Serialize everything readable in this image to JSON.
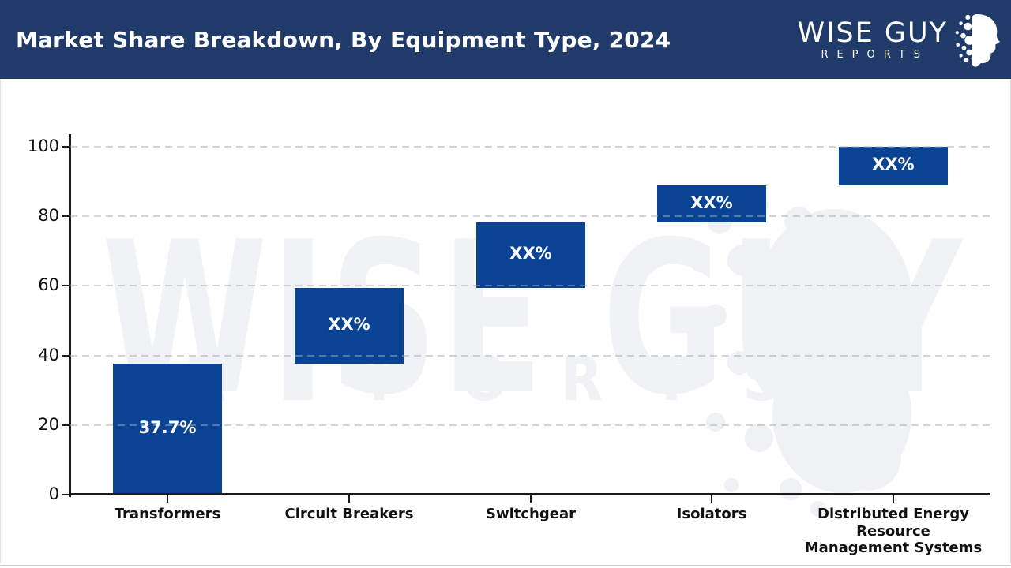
{
  "header": {
    "title": "Market Share Breakdown, By Equipment Type, 2024",
    "logo": {
      "line1": "WISE GUY",
      "line2": "REPORTS"
    },
    "bg_color": "#203a69"
  },
  "watermark": {
    "line1": "WISE GUY",
    "line2": "REPORTS"
  },
  "chart_data": {
    "type": "bar",
    "subtype": "waterfall",
    "title": "Market Share Breakdown, By Equipment Type, 2024",
    "categories": [
      "Transformers",
      "Circuit Breakers",
      "Switchgear",
      "Isolators",
      "Distributed Energy Resource Management Systems"
    ],
    "category_display": [
      "Transformers",
      "Circuit Breakers",
      "Switchgear",
      "Isolators",
      "Distributed Energy\nResource\nManagement Systems"
    ],
    "series": [
      {
        "name": "Market Share (%)",
        "segments": [
          {
            "start": 0,
            "end": 37.7,
            "label": "37.7%"
          },
          {
            "start": 37.7,
            "end": 59.5,
            "label": "XX%"
          },
          {
            "start": 59.5,
            "end": 78.2,
            "label": "XX%"
          },
          {
            "start": 78.2,
            "end": 88.9,
            "label": "XX%"
          },
          {
            "start": 88.9,
            "end": 100,
            "label": "XX%"
          }
        ]
      }
    ],
    "yticks": [
      0,
      20,
      40,
      60,
      80,
      100
    ],
    "ylim": [
      0,
      103.6
    ],
    "xlabel": "",
    "ylabel": "",
    "grid": "horizontal-dashed",
    "legend": "none",
    "bar_color": "#0a4394",
    "label_color": "#ffffff",
    "axis_color": "#1b1b1b"
  }
}
